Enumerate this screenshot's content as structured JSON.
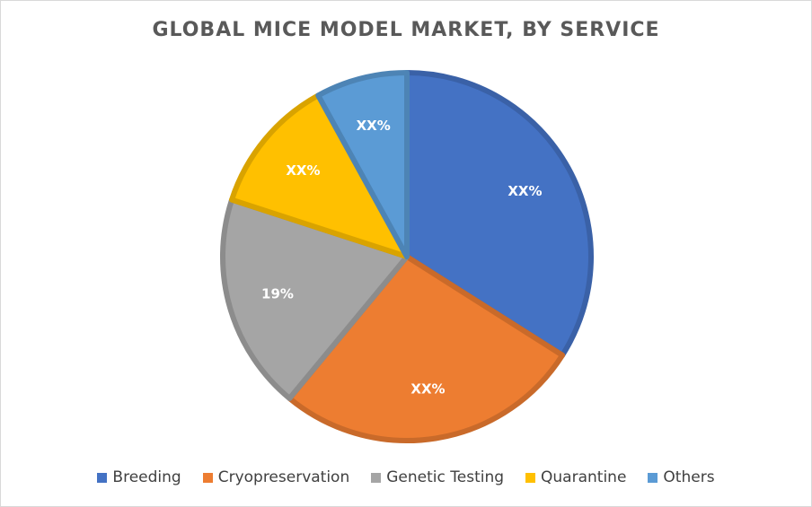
{
  "chart_data": {
    "type": "pie",
    "title": "GLOBAL MICE MODEL MARKET, BY SERVICE",
    "series": [
      {
        "name": "Breeding",
        "value": 34,
        "label": "XX%",
        "color": "#4472C4"
      },
      {
        "name": "Cryopreservation",
        "value": 27,
        "label": "XX%",
        "color": "#ED7D31"
      },
      {
        "name": "Genetic Testing",
        "value": 19,
        "label": "19%",
        "color": "#A5A5A5"
      },
      {
        "name": "Quarantine",
        "value": 12,
        "label": "XX%",
        "color": "#FFC000"
      },
      {
        "name": "Others",
        "value": 8,
        "label": "XX%",
        "color": "#5B9BD5"
      }
    ],
    "legend_position": "bottom"
  }
}
